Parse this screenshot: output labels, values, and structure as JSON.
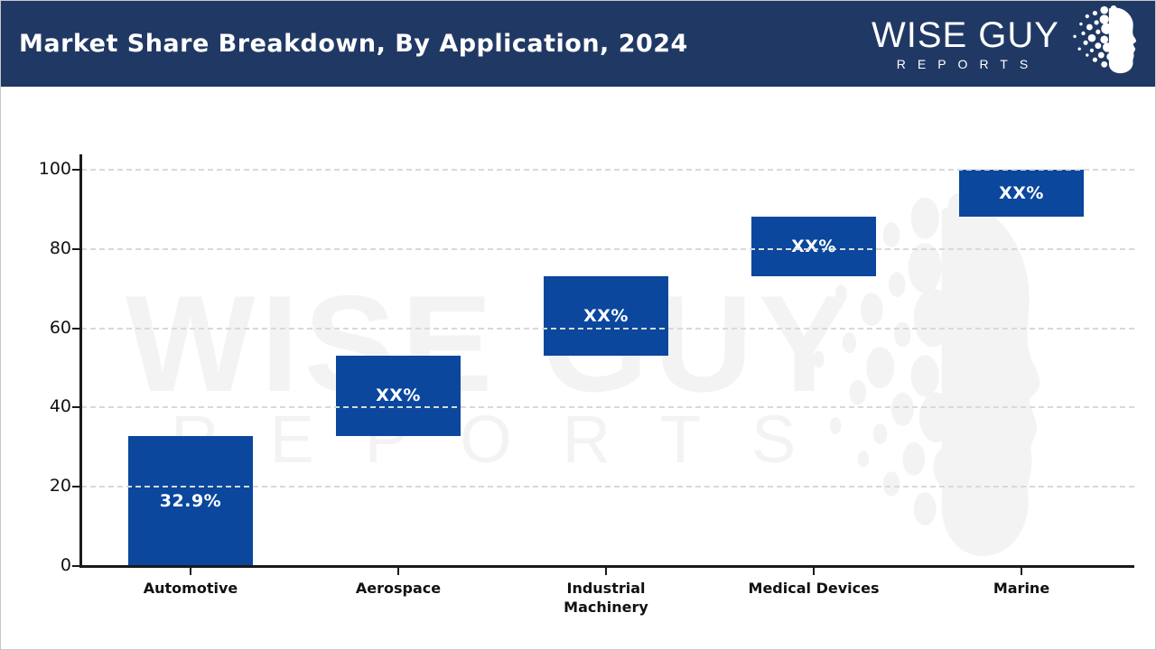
{
  "header": {
    "title": "Market Share Breakdown, By Application, 2024",
    "bg_color": "#203864"
  },
  "logo": {
    "line1": "WISE GUY",
    "line2": "REPORTS"
  },
  "watermark": {
    "line1": "WISE GUY",
    "line2": "REPORTS"
  },
  "chart_data": {
    "type": "bar",
    "subtype": "floating-waterfall",
    "title": "Market Share Breakdown, By Application, 2024",
    "categories": [
      "Automotive",
      "Aerospace",
      "Industrial Machinery",
      "Medical Devices",
      "Marine"
    ],
    "segments": [
      {
        "category": "Automotive",
        "start": 0,
        "end": 32.9,
        "label": "32.9%"
      },
      {
        "category": "Aerospace",
        "start": 32.9,
        "end": 53.0,
        "label": "XX%"
      },
      {
        "category": "Industrial Machinery",
        "start": 53.0,
        "end": 73.2,
        "label": "XX%"
      },
      {
        "category": "Medical Devices",
        "start": 73.2,
        "end": 88.2,
        "label": "XX%"
      },
      {
        "category": "Marine",
        "start": 88.2,
        "end": 100,
        "label": "XX%"
      }
    ],
    "yticks": [
      0,
      20,
      40,
      60,
      80,
      100
    ],
    "ylim": [
      0,
      105
    ],
    "xlabel": "",
    "ylabel": "",
    "legend": "none",
    "grid": {
      "horizontal": true,
      "style": "dashed",
      "color": "#d9d9d9",
      "drawn_over_bars": true
    },
    "bar_color": "#0a479d",
    "bar_label_color": "#ffffff",
    "axis_color": "#1a1a1a"
  }
}
